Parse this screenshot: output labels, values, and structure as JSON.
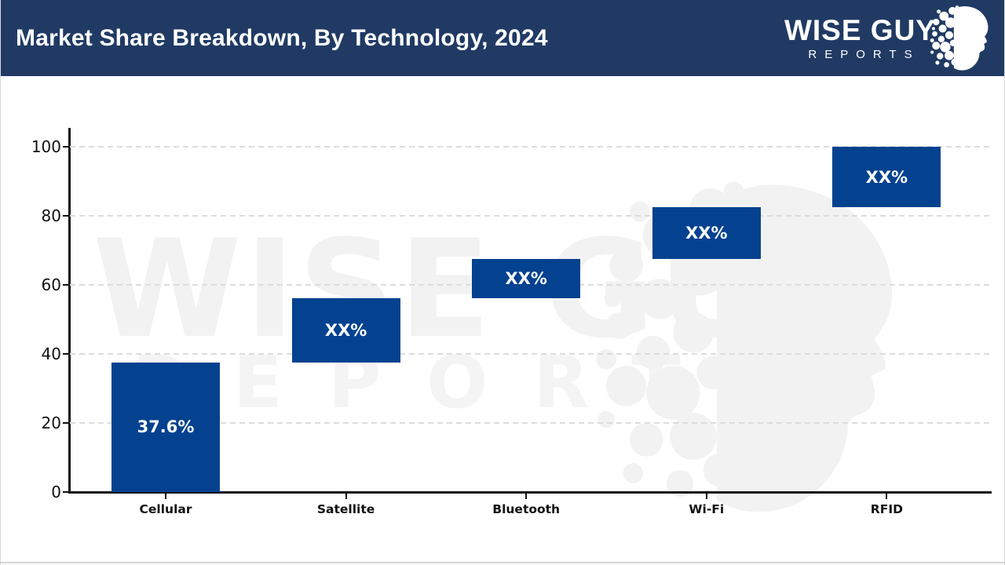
{
  "header": {
    "title": "Market Share Breakdown, By Technology, 2024",
    "logo": {
      "line1": "WISE GUY",
      "line2": "REPORTS"
    }
  },
  "watermark": {
    "line1": "WISE GUY",
    "line2": "REPORTS"
  },
  "colors": {
    "header_bg": "#203a64",
    "bar": "#044290",
    "bar_label": "#ffffff",
    "gridline": "#dcdcdc",
    "axis": "#111111",
    "watermark": "#f2f2f2"
  },
  "chart_data": {
    "type": "bar",
    "subtype": "waterfall",
    "title": "Market Share Breakdown, By Technology, 2024",
    "categories": [
      "Cellular",
      "Satellite",
      "Bluetooth",
      "Wi-Fi",
      "RFID"
    ],
    "bars": [
      {
        "category": "Cellular",
        "start": 0,
        "end": 37.6,
        "value": 37.6,
        "label": "37.6%"
      },
      {
        "category": "Satellite",
        "start": 37.6,
        "end": 56.1,
        "value": 18.5,
        "label": "XX%"
      },
      {
        "category": "Bluetooth",
        "start": 56.1,
        "end": 67.4,
        "value": 11.3,
        "label": "XX%"
      },
      {
        "category": "Wi-Fi",
        "start": 67.4,
        "end": 82.5,
        "value": 15.1,
        "label": "XX%"
      },
      {
        "category": "RFID",
        "start": 82.5,
        "end": 100,
        "value": 17.5,
        "label": "XX%"
      }
    ],
    "y_ticks": [
      0,
      20,
      40,
      60,
      80,
      100
    ],
    "ylim": [
      0,
      105
    ],
    "xlabel": "",
    "ylabel": "",
    "grid": "horizontal-dashed",
    "legend": "none"
  }
}
